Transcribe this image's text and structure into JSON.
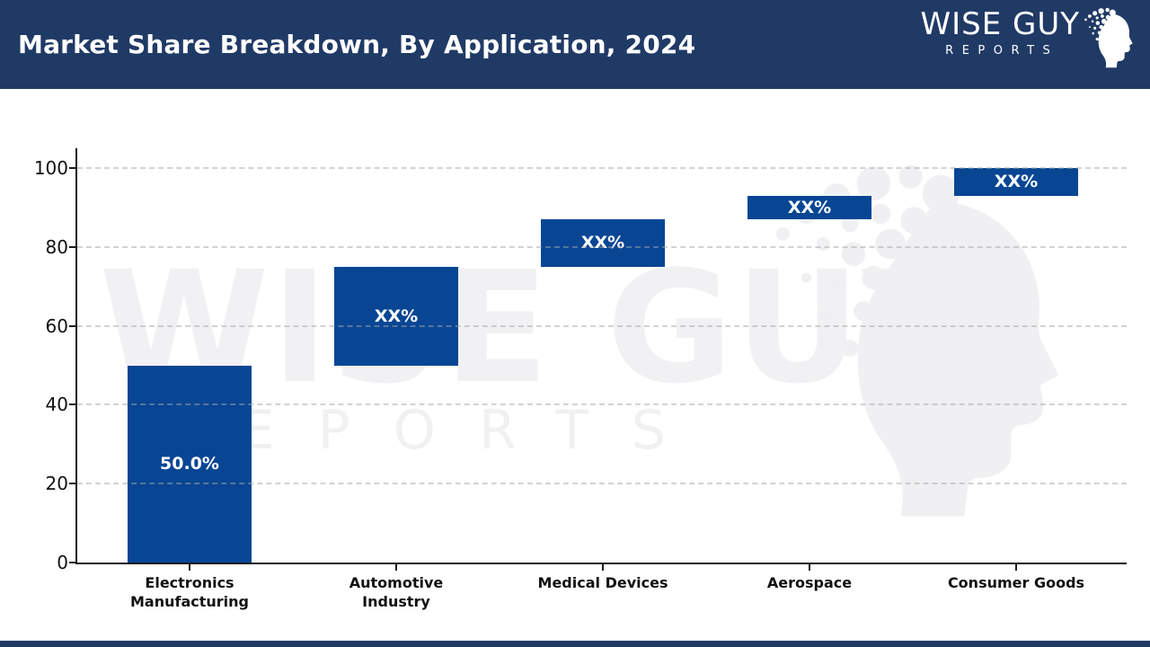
{
  "header": {
    "title": "Market Share Breakdown, By Application, 2024",
    "background": "#203a66",
    "logo": {
      "line1": "WISE GUY",
      "line2": "REPORTS"
    }
  },
  "watermark": {
    "line1": "WISE GUY",
    "line2": "REPORTS"
  },
  "footer": {
    "background": "#203a66"
  },
  "chart_data": {
    "type": "bar",
    "subtype": "waterfall",
    "title": "Market Share Breakdown, By Application, 2024",
    "categories": [
      "Electronics\nManufacturing",
      "Automotive\nIndustry",
      "Medical Devices",
      "Aerospace",
      "Consumer Goods"
    ],
    "series": [
      {
        "name": "Market Share",
        "segments": [
          [
            0,
            50
          ],
          [
            50,
            75
          ],
          [
            75,
            87
          ],
          [
            87,
            93
          ],
          [
            93,
            100
          ]
        ]
      }
    ],
    "bar_labels": [
      "50.0%",
      "XX%",
      "XX%",
      "XX%",
      "XX%"
    ],
    "yticks": [
      0,
      20,
      40,
      60,
      80,
      100
    ],
    "ylim": [
      0,
      105
    ],
    "xlabel": "",
    "ylabel": "",
    "grid": "horizontal-dashed",
    "legend": "none",
    "bar_color": "#084694",
    "bar_label_color": "#ffffff",
    "axis_color": "#1a1a1a",
    "grid_color": "#a5a5a5"
  }
}
